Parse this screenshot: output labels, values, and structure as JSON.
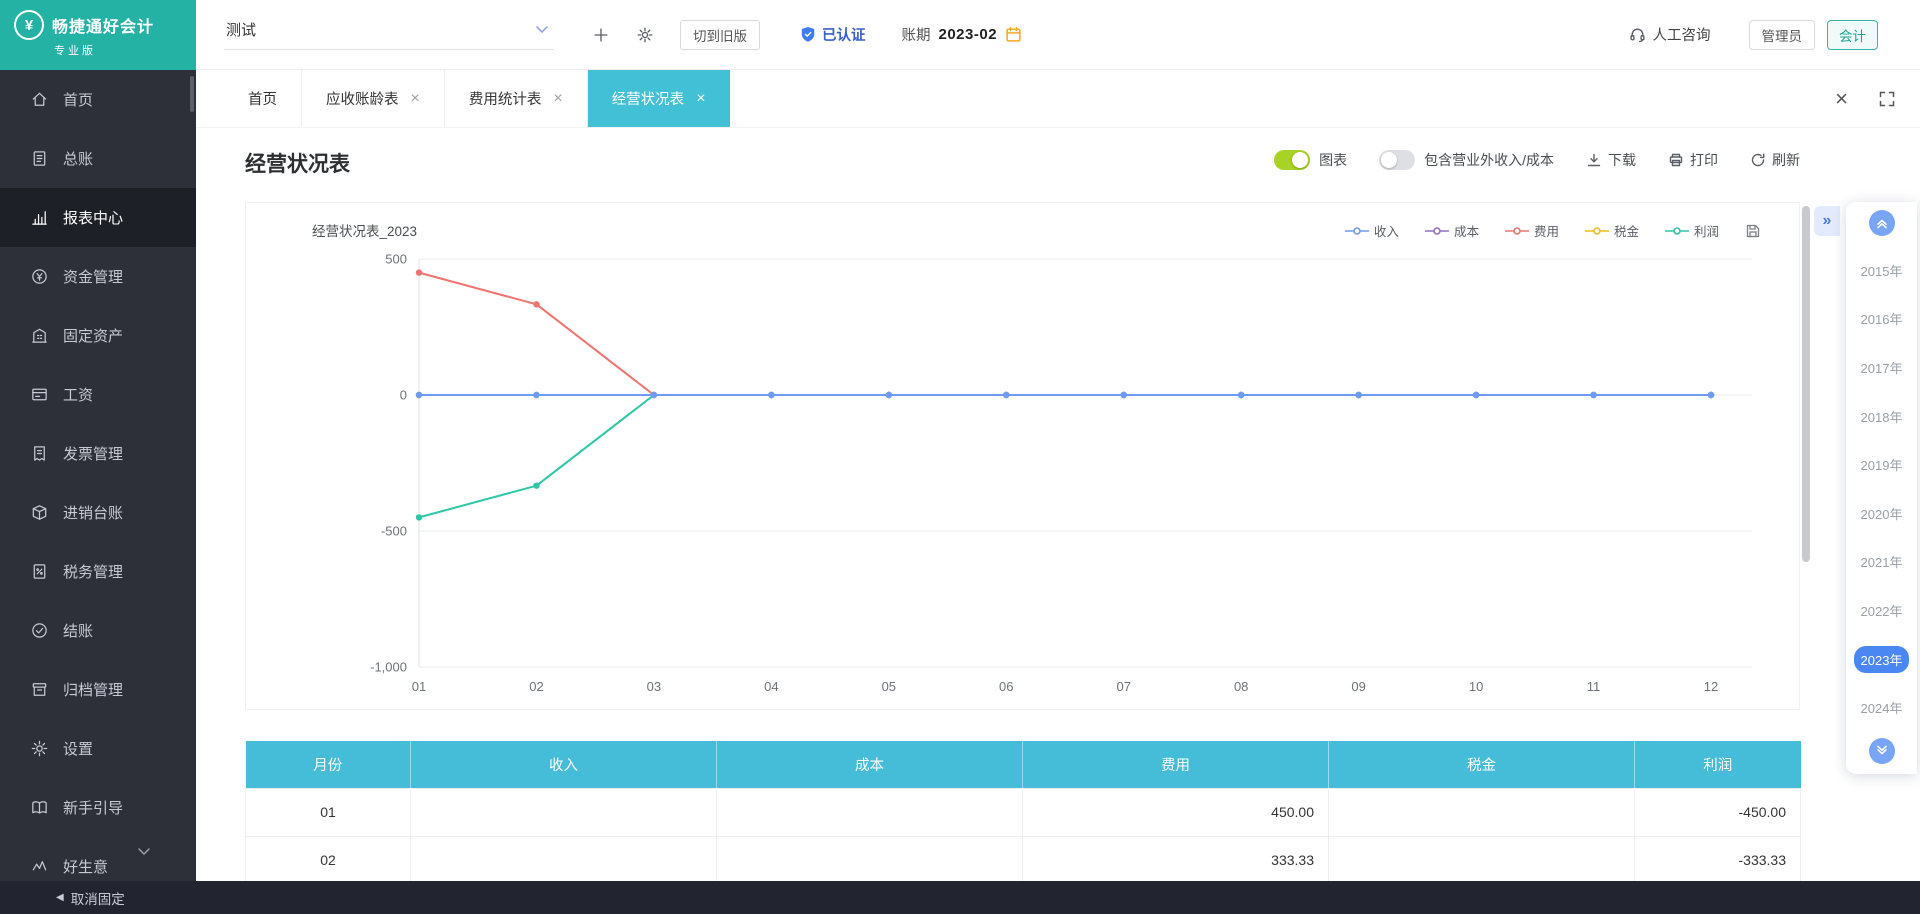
{
  "brand": {
    "name": "畅捷通好会计",
    "edition": "专业版",
    "logo_glyph": "¥"
  },
  "topbar": {
    "account": "测试",
    "switch_old_label": "切到旧版",
    "certified_label": "已认证",
    "period_label": "账期",
    "period_value": "2023-02",
    "consult_label": "人工咨询",
    "admin_label": "管理员",
    "role_label": "会计"
  },
  "sidebar": {
    "items": [
      {
        "label": "首页",
        "icon": "home-icon",
        "key": "home",
        "active": false
      },
      {
        "label": "总账",
        "icon": "ledger-icon",
        "key": "general-ledger",
        "active": false
      },
      {
        "label": "报表中心",
        "icon": "report-icon",
        "key": "report-center",
        "active": true
      },
      {
        "label": "资金管理",
        "icon": "funds-icon",
        "key": "funds",
        "active": false
      },
      {
        "label": "固定资产",
        "icon": "fixed-asset-icon",
        "key": "fixed-assets",
        "active": false
      },
      {
        "label": "工资",
        "icon": "salary-icon",
        "key": "salary",
        "active": false
      },
      {
        "label": "发票管理",
        "icon": "invoice-icon",
        "key": "invoice",
        "active": false
      },
      {
        "label": "进销台账",
        "icon": "inventory-icon",
        "key": "inventory-ledger",
        "active": false
      },
      {
        "label": "税务管理",
        "icon": "tax-icon",
        "key": "tax",
        "active": false
      },
      {
        "label": "结账",
        "icon": "closing-icon",
        "key": "closing",
        "active": false
      },
      {
        "label": "归档管理",
        "icon": "archive-icon",
        "key": "archive",
        "active": false
      },
      {
        "label": "设置",
        "icon": "settings-icon",
        "key": "settings",
        "active": false
      },
      {
        "label": "新手引导",
        "icon": "guide-icon",
        "key": "guide",
        "active": false
      },
      {
        "label": "好生意",
        "icon": "promo-icon",
        "key": "promo",
        "active": false
      }
    ]
  },
  "tabbar": {
    "tabs": [
      {
        "label": "首页",
        "key": "home",
        "closable": false,
        "active": false
      },
      {
        "label": "应收账龄表",
        "key": "receivable-aging",
        "closable": true,
        "active": false
      },
      {
        "label": "费用统计表",
        "key": "expense-statistics",
        "closable": true,
        "active": false
      },
      {
        "label": "经营状况表",
        "key": "operating-status",
        "closable": true,
        "active": true
      }
    ]
  },
  "page": {
    "title": "经营状况表",
    "chart_toggle_label": "图表",
    "chart_toggle_on": true,
    "nonop_toggle_label": "包含营业外收入/成本",
    "nonop_toggle_on": false,
    "download_label": "下载",
    "print_label": "打印",
    "refresh_label": "刷新"
  },
  "chart_data": {
    "type": "line",
    "title": "经营状况表_2023",
    "x": [
      "01",
      "02",
      "03",
      "04",
      "05",
      "06",
      "07",
      "08",
      "09",
      "10",
      "11",
      "12"
    ],
    "series": [
      {
        "name": "收入",
        "key": "income",
        "color": "#6d9bf5",
        "values": [
          0,
          0,
          0,
          0,
          0,
          0,
          0,
          0,
          0,
          0,
          0,
          0
        ]
      },
      {
        "name": "成本",
        "key": "cost",
        "color": "#9270ca",
        "values": [
          0,
          0,
          0,
          0,
          0,
          0,
          0,
          0,
          0,
          0,
          0,
          0
        ]
      },
      {
        "name": "费用",
        "key": "expense",
        "color": "#f0736f",
        "values": [
          450,
          333.33,
          0,
          0,
          0,
          0,
          0,
          0,
          0,
          0,
          0,
          0
        ]
      },
      {
        "name": "税金",
        "key": "tax",
        "color": "#f6bd16",
        "values": [
          0,
          0,
          0,
          0,
          0,
          0,
          0,
          0,
          0,
          0,
          0,
          0
        ]
      },
      {
        "name": "利润",
        "key": "profit",
        "color": "#2ec7a5",
        "values": [
          -450,
          -333.33,
          0,
          0,
          0,
          0,
          0,
          0,
          0,
          0,
          0,
          0
        ]
      }
    ],
    "ylim": [
      -1000,
      500
    ],
    "yticks": [
      500,
      0,
      -500,
      -1000
    ],
    "grid": true,
    "legend_position": "top-right"
  },
  "years": {
    "items": [
      "2015年",
      "2016年",
      "2017年",
      "2018年",
      "2019年",
      "2020年",
      "2021年",
      "2022年",
      "2023年",
      "2024年"
    ],
    "selected": "2023年"
  },
  "table": {
    "columns": [
      "月份",
      "收入",
      "成本",
      "费用",
      "税金",
      "利润"
    ],
    "rows": [
      [
        "01",
        "",
        "",
        "450.00",
        "",
        "-450.00"
      ],
      [
        "02",
        "",
        "",
        "333.33",
        "",
        "-333.33"
      ]
    ]
  },
  "footer": {
    "unpin_label": "取消固定"
  },
  "colors": {
    "accent_teal": "#23b2a4",
    "tab_active": "#42c0d6",
    "table_header": "#45bdd9",
    "toggle_on": "#a6d325",
    "year_selected": "#4b87f2",
    "scroll_accent": "#79a5f6"
  }
}
